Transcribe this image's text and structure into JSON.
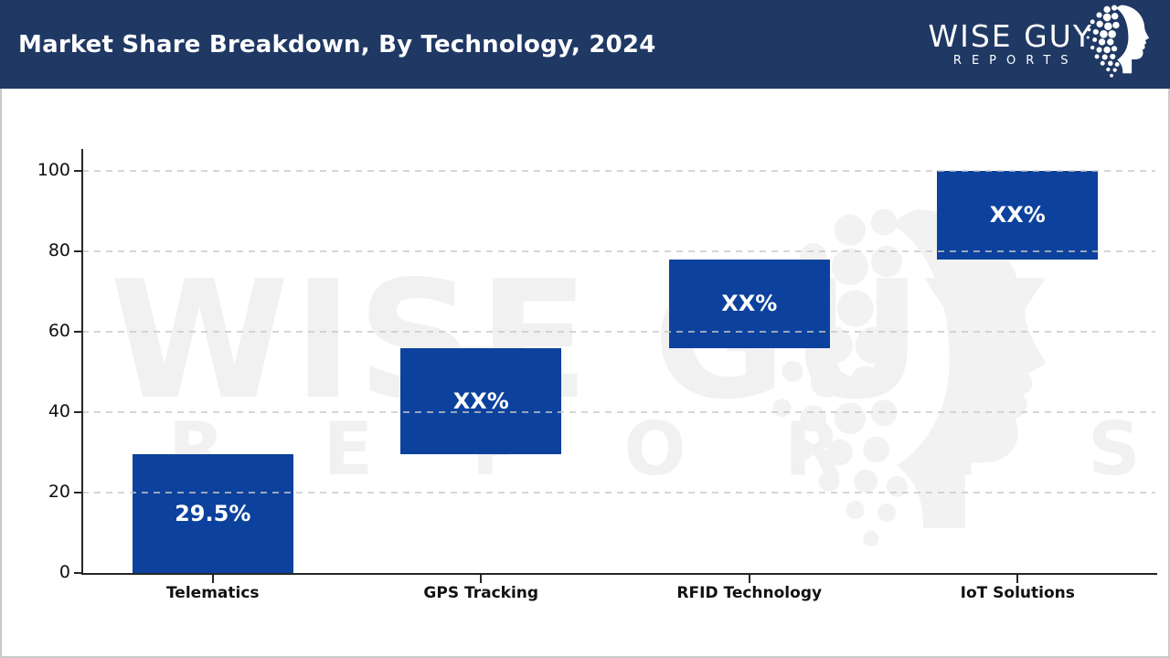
{
  "header": {
    "title": "Market Share Breakdown, By Technology, 2024",
    "bg_color": "#1f3864",
    "logo": {
      "line1": "WISE GUY",
      "line2": "REPORTS",
      "head_icon": "dotted-head-profile"
    }
  },
  "watermark": {
    "line1": "WISE GUY",
    "line2": "R E P O R T S",
    "head_icon": "dotted-head-profile"
  },
  "chart_data": {
    "type": "bar",
    "subtype": "waterfall-stacked-breakdown",
    "title": "Market Share Breakdown, By Technology, 2024",
    "xlabel": "",
    "ylabel": "",
    "categories": [
      "Telematics",
      "GPS Tracking",
      "RFID Technology",
      "IoT Solutions"
    ],
    "series": [
      {
        "name": "Market Share (%)",
        "segments": [
          {
            "category": "Telematics",
            "start": 0,
            "end": 29.5,
            "label": "29.5%"
          },
          {
            "category": "GPS Tracking",
            "start": 29.5,
            "end": 56,
            "label": "XX%"
          },
          {
            "category": "RFID Technology",
            "start": 56,
            "end": 78,
            "label": "XX%"
          },
          {
            "category": "IoT Solutions",
            "start": 78,
            "end": 100,
            "label": "XX%"
          }
        ]
      }
    ],
    "ylim": [
      0,
      105.5
    ],
    "yticks": [
      0,
      20,
      40,
      60,
      80,
      100
    ],
    "grid": "horizontal-dashed",
    "legend": "none",
    "bar_color": "#0c429d",
    "bar_label_color": "#ffffff",
    "axis_color": "#262626",
    "gridline_color": "#d2d2d2"
  }
}
